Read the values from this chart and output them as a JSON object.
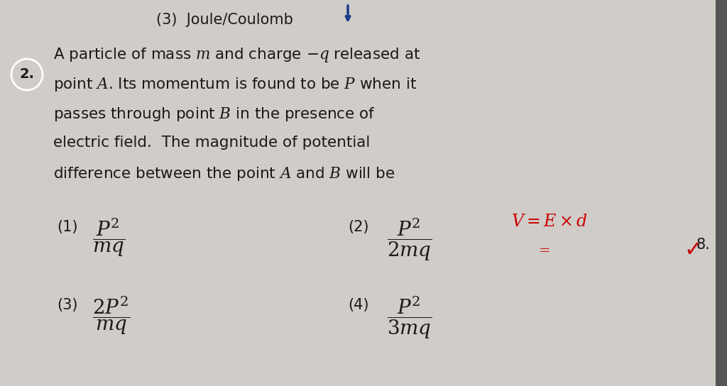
{
  "bg_color": "#d0ccc8",
  "text_color": "#1a1a1a",
  "red_color": "#cc0000",
  "header_text": "(3)  Joule/Coulomb",
  "question_number": "2.",
  "annotation_color": "#cc0000",
  "side_number": "8.",
  "top_arrow_color": "#1a3a8a"
}
